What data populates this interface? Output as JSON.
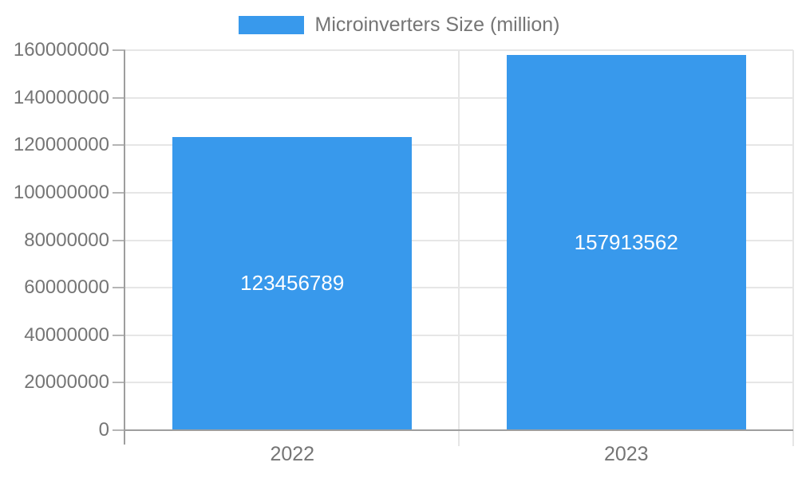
{
  "chart_data": {
    "type": "bar",
    "title": "Microinverters Size (million)",
    "categories": [
      "2022",
      "2023"
    ],
    "series": [
      {
        "name": "Microinverters Size (million)",
        "values": [
          123456789,
          157913562
        ]
      }
    ],
    "bar_value_labels": [
      "123456789",
      "157913562"
    ],
    "xlabel": "",
    "ylabel": "",
    "ylim": [
      0,
      160000000
    ],
    "ytick_step": 20000000,
    "yticks": [
      0,
      20000000,
      40000000,
      60000000,
      80000000,
      100000000,
      120000000,
      140000000,
      160000000
    ],
    "grid": "horizontal",
    "legend_position": "top-center",
    "colors": {
      "bar": "#3899EC",
      "axis_text": "#757575",
      "bar_label_text": "#FFFFFF",
      "gridline": "#E6E6E6",
      "axis_line": "#9E9E9E",
      "tick": "#B5B5B5",
      "background": "#FFFFFF"
    }
  }
}
